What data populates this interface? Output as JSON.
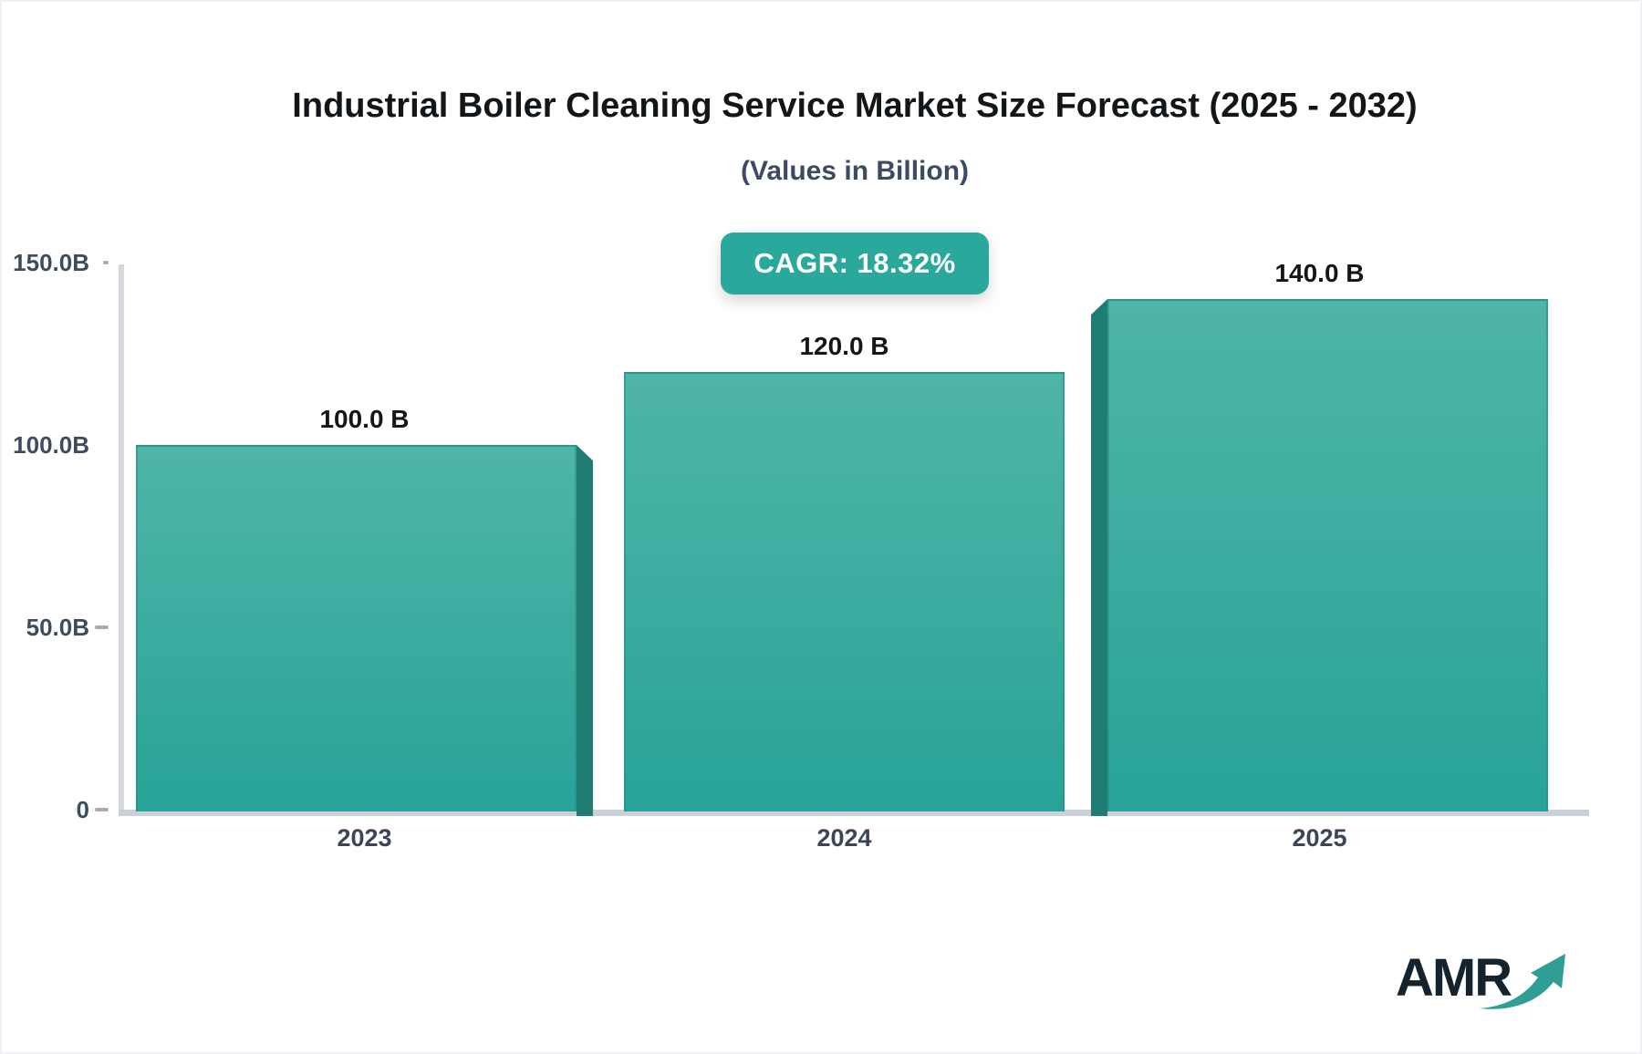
{
  "header": {
    "title": "Industrial Boiler Cleaning Service Market Size Forecast (2025 - 2032)",
    "subtitle": "(Values in Billion)"
  },
  "badge": {
    "label": "CAGR: 18.32%",
    "bg_color": "#2aa89c",
    "text_color": "#ffffff"
  },
  "chart_data": {
    "type": "bar",
    "title": "Industrial Boiler Cleaning Service Market Size Forecast (2025 - 2032)",
    "subtitle": "(Values in Billion)",
    "cagr": "18.32%",
    "categories": [
      "2023",
      "2024",
      "2025"
    ],
    "values": [
      100.0,
      120.0,
      140.0
    ],
    "value_labels": [
      "100.0 B",
      "120.0 B",
      "140.0 B"
    ],
    "unit": "Billion",
    "ylim": [
      0,
      150
    ],
    "y_ticks": [
      {
        "label": "150.0B",
        "value": 150
      },
      {
        "label": "100.0B",
        "value": 100
      },
      {
        "label": "50.0B",
        "value": 50
      },
      {
        "label": "0",
        "value": 0
      }
    ],
    "grid": false,
    "legend_position": "none",
    "bar_color_top": "#4fb5a8",
    "bar_color_bottom": "#28a398",
    "bar_side_color": "#1f7d74",
    "axis_color": "#d5d8de",
    "effect": "3d-side-panels"
  },
  "footer": {
    "logo_text": "AMR",
    "logo_arrow_icon": "trend-up-arrow",
    "logo_arrow_color": "#2f9e94"
  }
}
